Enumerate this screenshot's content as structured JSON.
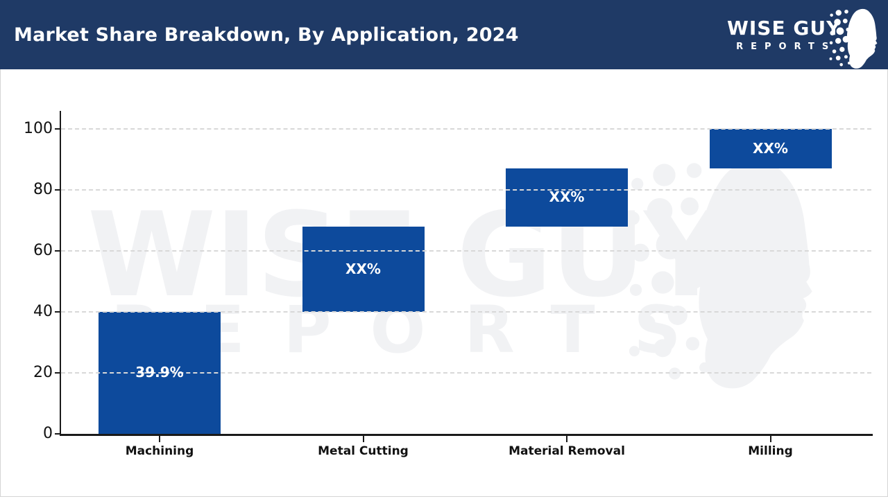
{
  "header": {
    "title": "Market Share Breakdown, By Application, 2024",
    "logo": {
      "line1": "WISE GUY",
      "line2": "REPORTS"
    }
  },
  "watermark": {
    "line1": "WISE GUY",
    "line2": "REPORTS"
  },
  "colors": {
    "header_bg": "#1F3A66",
    "bar": "#0D4A9C",
    "bar_label": "#FFFFFF",
    "axis": "#1A1A1A",
    "grid": "#D8D8D8",
    "tick_label": "#111111",
    "watermark": "#F1F2F4",
    "border": "#D4D4D4"
  },
  "chart_data": {
    "type": "bar",
    "subtype": "waterfall",
    "title": "Market Share Breakdown, By Application, 2024",
    "unit": "%",
    "categories": [
      "Machining",
      "Metal Cutting",
      "Material Removal",
      "Milling"
    ],
    "segments": [
      {
        "category": "Machining",
        "start": 0,
        "end": 39.9,
        "label": "39.9%"
      },
      {
        "category": "Metal Cutting",
        "start": 39.9,
        "end": 68,
        "label": "XX%"
      },
      {
        "category": "Material Removal",
        "start": 68,
        "end": 87,
        "label": "XX%"
      },
      {
        "category": "Milling",
        "start": 87,
        "end": 100,
        "label": "XX%"
      }
    ],
    "ylim": [
      0,
      106
    ],
    "yticks": [
      0,
      20,
      40,
      60,
      80,
      100
    ],
    "grid": "horizontal dashed",
    "legend": "none"
  }
}
